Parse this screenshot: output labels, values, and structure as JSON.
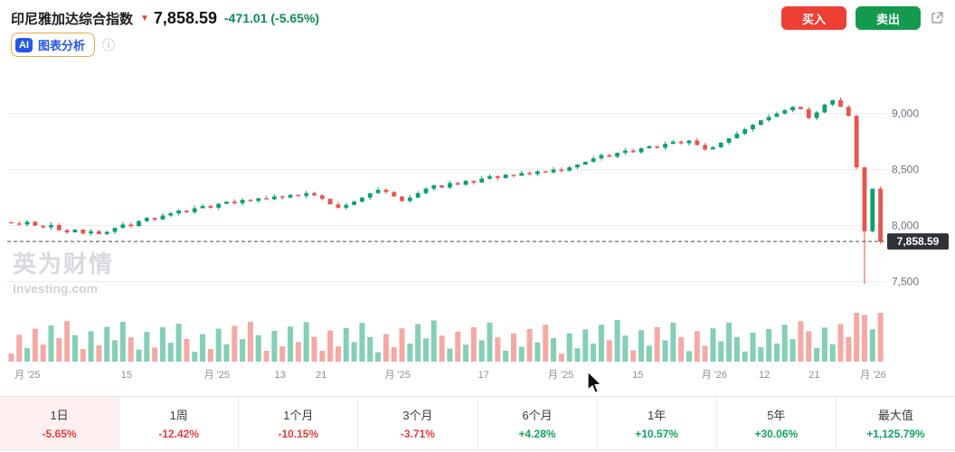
{
  "header": {
    "title": "印尼雅加达综合指数",
    "direction_arrow": "▼",
    "price": "7,858.59",
    "change": "-471.01 (-5.65%)",
    "buy_label": "买入",
    "sell_label": "卖出"
  },
  "toolbar": {
    "ai_badge": "AI",
    "ai_label": "图表分析",
    "info_glyph": "ⓘ"
  },
  "watermark": {
    "line1": "英为财情",
    "line2": "Investing.com"
  },
  "chart_data": {
    "type": "candlestick",
    "title": "印尼雅加达综合指数",
    "ylim": [
      7400,
      9320
    ],
    "y_ticks": [
      "9,000",
      "8,500",
      "8,000",
      "7,500"
    ],
    "y_tick_values": [
      9000,
      8500,
      8000,
      7500
    ],
    "last_price": 7858.59,
    "last_price_label": "7,858.59",
    "up_color": "#0aa06e",
    "down_color": "#e9544c",
    "grid": true,
    "legend": "none",
    "volume_pane": true,
    "closes": [
      8020,
      8010,
      8035,
      8000,
      7985,
      8005,
      7960,
      7940,
      7965,
      7930,
      7950,
      7925,
      7945,
      7980,
      8010,
      7995,
      8040,
      8070,
      8055,
      8090,
      8110,
      8135,
      8120,
      8155,
      8175,
      8160,
      8195,
      8215,
      8200,
      8230,
      8220,
      8245,
      8235,
      8260,
      8250,
      8275,
      8265,
      8290,
      8270,
      8240,
      8190,
      8160,
      8185,
      8215,
      8250,
      8290,
      8320,
      8300,
      8260,
      8220,
      8250,
      8290,
      8330,
      8360,
      8340,
      8380,
      8365,
      8400,
      8385,
      8420,
      8440,
      8425,
      8455,
      8445,
      8470,
      8460,
      8485,
      8475,
      8500,
      8490,
      8520,
      8545,
      8570,
      8600,
      8630,
      8615,
      8650,
      8670,
      8655,
      8690,
      8710,
      8695,
      8730,
      8750,
      8735,
      8760,
      8720,
      8680,
      8700,
      8740,
      8780,
      8820,
      8860,
      8900,
      8940,
      8970,
      9000,
      9030,
      9060,
      9040,
      8960,
      9010,
      9080,
      9120,
      9060,
      8980,
      8520,
      7950,
      8330,
      7858.59
    ],
    "special_low": {
      "index": 107,
      "value": 7480
    },
    "x_ticks": [
      {
        "label": "月 '25",
        "pos": 0.023
      },
      {
        "label": "15",
        "pos": 0.136
      },
      {
        "label": "月 '25",
        "pos": 0.239
      },
      {
        "label": "13",
        "pos": 0.311
      },
      {
        "label": "21",
        "pos": 0.358
      },
      {
        "label": "月 '25",
        "pos": 0.445
      },
      {
        "label": "17",
        "pos": 0.543
      },
      {
        "label": "月 '25",
        "pos": 0.631
      },
      {
        "label": "15",
        "pos": 0.719
      },
      {
        "label": "月 '26",
        "pos": 0.806
      },
      {
        "label": "12",
        "pos": 0.863
      },
      {
        "label": "21",
        "pos": 0.92
      },
      {
        "label": "月 '26",
        "pos": 0.987
      }
    ]
  },
  "periods": [
    {
      "label": "1日",
      "value": "-5.65%",
      "dir": "down"
    },
    {
      "label": "1周",
      "value": "-12.42%",
      "dir": "down"
    },
    {
      "label": "1个月",
      "value": "-10.15%",
      "dir": "down"
    },
    {
      "label": "3个月",
      "value": "-3.71%",
      "dir": "down"
    },
    {
      "label": "6个月",
      "value": "+4.28%",
      "dir": "up"
    },
    {
      "label": "1年",
      "value": "+10.57%",
      "dir": "up"
    },
    {
      "label": "5年",
      "value": "+30.06%",
      "dir": "up"
    },
    {
      "label": "最大值",
      "value": "+1,125.79%",
      "dir": "up"
    }
  ],
  "colors": {
    "buy": "#ee3f34",
    "sell": "#149a4e",
    "change_text": "#0a8f4d",
    "value_down": "#e23d3d",
    "value_up": "#12a35b",
    "price_tag_bg": "#2f3237"
  }
}
